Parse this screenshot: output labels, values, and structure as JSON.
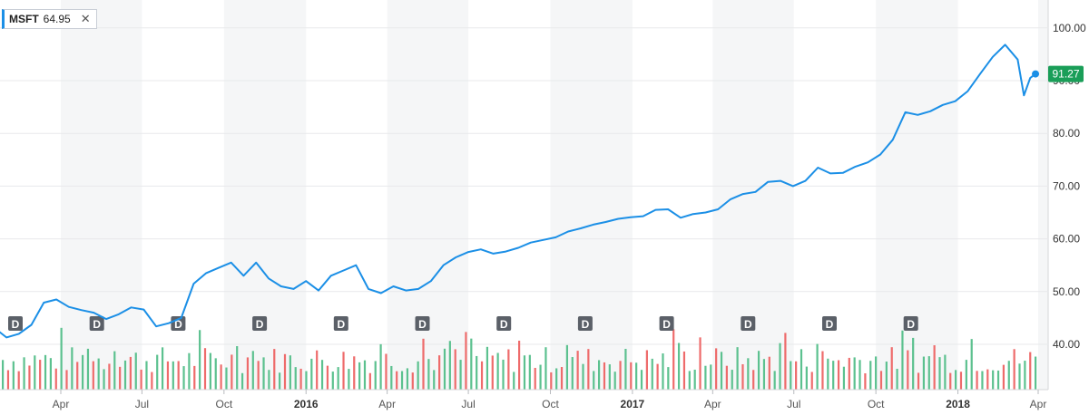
{
  "legend": {
    "symbol": "MSFT",
    "value": "64.95",
    "close_glyph": "✕"
  },
  "colors": {
    "line": "#1b8fe6",
    "up_volume": "#5cc18f",
    "down_volume": "#ee6b6b",
    "badge": "#1a9e58",
    "marker": "#5b6068",
    "band": "#f5f6f7",
    "grid": "#e8e9eb"
  },
  "chart_data": {
    "type": "line",
    "title": "",
    "series": [
      {
        "name": "MSFT",
        "x": [
          "2015-01-02",
          "2015-01-16",
          "2015-01-30",
          "2015-02-13",
          "2015-02-27",
          "2015-03-13",
          "2015-03-27",
          "2015-04-10",
          "2015-04-24",
          "2015-05-08",
          "2015-05-22",
          "2015-06-05",
          "2015-06-19",
          "2015-07-03",
          "2015-07-17",
          "2015-07-31",
          "2015-08-14",
          "2015-08-28",
          "2015-09-11",
          "2015-09-25",
          "2015-10-09",
          "2015-10-23",
          "2015-11-06",
          "2015-11-20",
          "2015-12-04",
          "2015-12-18",
          "2016-01-01",
          "2016-01-15",
          "2016-01-29",
          "2016-02-12",
          "2016-02-26",
          "2016-03-11",
          "2016-03-25",
          "2016-04-08",
          "2016-04-22",
          "2016-05-06",
          "2016-05-20",
          "2016-06-03",
          "2016-06-17",
          "2016-07-01",
          "2016-07-15",
          "2016-07-29",
          "2016-08-12",
          "2016-08-26",
          "2016-09-09",
          "2016-09-23",
          "2016-10-07",
          "2016-10-21",
          "2016-11-04",
          "2016-11-18",
          "2016-12-02",
          "2016-12-16",
          "2016-12-30",
          "2017-01-13",
          "2017-01-27",
          "2017-02-10",
          "2017-02-24",
          "2017-03-10",
          "2017-03-24",
          "2017-04-07",
          "2017-04-21",
          "2017-05-05",
          "2017-05-19",
          "2017-06-02",
          "2017-06-16",
          "2017-06-30",
          "2017-07-14",
          "2017-07-28",
          "2017-08-11",
          "2017-08-25",
          "2017-09-08",
          "2017-09-22",
          "2017-10-06",
          "2017-10-20",
          "2017-11-03",
          "2017-11-17",
          "2017-12-01",
          "2017-12-15",
          "2017-12-29",
          "2018-01-12",
          "2018-01-26",
          "2018-02-09",
          "2018-02-23",
          "2018-03-09",
          "2018-03-16",
          "2018-03-23",
          "2018-03-29"
        ],
        "values": [
          42.9,
          43.2,
          41.3,
          42.0,
          43.7,
          47.9,
          48.5,
          47.1,
          46.5,
          46.0,
          44.8,
          45.7,
          47.0,
          46.6,
          43.4,
          44.0,
          45.0,
          51.5,
          53.5,
          54.5,
          55.5,
          53.0,
          55.5,
          52.5,
          51.0,
          50.5,
          52.0,
          50.2,
          53.0,
          54.0,
          55.0,
          50.5,
          49.7,
          51.0,
          50.2,
          50.5,
          52.0,
          55.0,
          56.5,
          57.5,
          58.0,
          57.2,
          57.6,
          58.3,
          59.3,
          59.8,
          60.3,
          61.4,
          62.0,
          62.7,
          63.2,
          63.8,
          64.1,
          64.3,
          65.5,
          65.6,
          64.0,
          64.7,
          65.0,
          65.6,
          67.5,
          68.5,
          68.9,
          70.8,
          71.0,
          70.0,
          71.0,
          73.5,
          72.4,
          72.5,
          73.7,
          74.5,
          76.0,
          78.8,
          84.0,
          83.5,
          84.2,
          85.4,
          86.1,
          88.0,
          91.3,
          94.5,
          96.8,
          94.0,
          87.2,
          90.5,
          91.27
        ]
      }
    ],
    "volume": {
      "colors": [
        "g",
        "r",
        "g",
        "r",
        "g",
        "r",
        "g",
        "r",
        "g",
        "g",
        "r",
        "g",
        "r",
        "g",
        "r",
        "g",
        "g",
        "r",
        "g",
        "g",
        "r",
        "g",
        "r",
        "g",
        "r",
        "g",
        "r",
        "g",
        "r",
        "g",
        "g",
        "r",
        "g",
        "r",
        "g",
        "g",
        "r",
        "g",
        "r",
        "g",
        "g",
        "r",
        "g",
        "r",
        "g",
        "g",
        "r",
        "g",
        "r",
        "g",
        "g",
        "r",
        "g",
        "r",
        "g",
        "g",
        "r",
        "g",
        "g",
        "r",
        "g",
        "r",
        "g",
        "g",
        "r",
        "g",
        "r",
        "g",
        "g",
        "r",
        "g",
        "g",
        "r",
        "g",
        "r",
        "g",
        "g",
        "r",
        "g",
        "r",
        "g",
        "g",
        "r",
        "g",
        "g",
        "r",
        "g",
        "r",
        "g",
        "g",
        "r",
        "g",
        "r",
        "g",
        "g",
        "r",
        "g",
        "r",
        "g",
        "g",
        "r",
        "g",
        "g",
        "r",
        "g",
        "r",
        "g",
        "g",
        "r",
        "g",
        "r",
        "g",
        "g",
        "r",
        "g",
        "g",
        "r",
        "g",
        "r",
        "g",
        "g",
        "r",
        "g",
        "r",
        "g",
        "g",
        "r",
        "g",
        "r",
        "g",
        "g",
        "r",
        "g",
        "g",
        "r",
        "g",
        "r",
        "g",
        "g",
        "r",
        "g",
        "r",
        "g",
        "g",
        "r",
        "g",
        "g",
        "r",
        "g",
        "r",
        "g",
        "g",
        "r",
        "g",
        "r",
        "g",
        "g",
        "r",
        "g",
        "r",
        "g",
        "g",
        "r",
        "g",
        "g",
        "r",
        "g",
        "r",
        "g",
        "g",
        "r",
        "g",
        "r",
        "g",
        "g",
        "r",
        "g",
        "g",
        "r",
        "g",
        "r",
        "g",
        "g",
        "r",
        "g",
        "r",
        "g",
        "g",
        "r",
        "g",
        "r",
        "g",
        "g",
        "r",
        "g"
      ]
    },
    "dividend_markers": [
      "D",
      "D",
      "D",
      "D",
      "D",
      "D",
      "D",
      "D",
      "D",
      "D",
      "D",
      "D"
    ],
    "x_ticks": [
      {
        "label": "Apr",
        "date": "2015-04-01",
        "bold": false
      },
      {
        "label": "Jul",
        "date": "2015-07-01",
        "bold": false
      },
      {
        "label": "Oct",
        "date": "2015-10-01",
        "bold": false
      },
      {
        "label": "2016",
        "date": "2016-01-01",
        "bold": true
      },
      {
        "label": "Apr",
        "date": "2016-04-01",
        "bold": false
      },
      {
        "label": "Jul",
        "date": "2016-07-01",
        "bold": false
      },
      {
        "label": "Oct",
        "date": "2016-10-01",
        "bold": false
      },
      {
        "label": "2017",
        "date": "2017-01-01",
        "bold": true
      },
      {
        "label": "Apr",
        "date": "2017-04-01",
        "bold": false
      },
      {
        "label": "Jul",
        "date": "2017-07-01",
        "bold": false
      },
      {
        "label": "Oct",
        "date": "2017-10-01",
        "bold": false
      },
      {
        "label": "2018",
        "date": "2018-01-01",
        "bold": true
      },
      {
        "label": "Apr",
        "date": "2018-04-01",
        "bold": false
      }
    ],
    "y_ticks": [
      "100.00",
      "90.00",
      "80.00",
      "70.00",
      "60.00",
      "50.00",
      "40.00"
    ],
    "ylim": [
      30,
      104
    ],
    "last_price": "91.27",
    "grid": true
  }
}
